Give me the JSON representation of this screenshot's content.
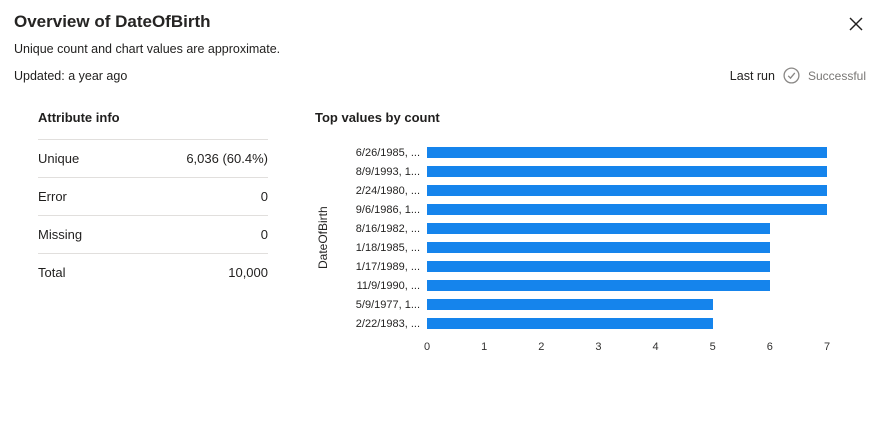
{
  "header": {
    "title": "Overview of DateOfBirth",
    "subtitle": "Unique count and chart values are approximate.",
    "updated": "Updated: a year ago",
    "last_run_label": "Last run",
    "last_run_status": "Successful"
  },
  "attribute_info": {
    "title": "Attribute info",
    "rows": [
      {
        "label": "Unique",
        "value": "6,036 (60.4%)"
      },
      {
        "label": "Error",
        "value": "0"
      },
      {
        "label": "Missing",
        "value": "0"
      },
      {
        "label": "Total",
        "value": "10,000"
      }
    ]
  },
  "chart_data": {
    "type": "bar",
    "orientation": "horizontal",
    "title": "Top values by count",
    "ylabel": "DateOfBirth",
    "categories": [
      "6/26/1985, ...",
      "8/9/1993, 1...",
      "2/24/1980, ...",
      "9/6/1986, 1...",
      "8/16/1982, ...",
      "1/18/1985, ...",
      "1/17/1989, ...",
      "11/9/1990, ...",
      "5/9/1977, 1...",
      "2/22/1983, ..."
    ],
    "values": [
      7,
      7,
      7,
      7,
      6,
      6,
      6,
      6,
      5,
      5
    ],
    "xlim": [
      0,
      7
    ],
    "x_ticks": [
      0,
      1,
      2,
      3,
      4,
      5,
      6,
      7
    ],
    "bar_color": "#1584ec",
    "grid": false,
    "legend": false
  }
}
